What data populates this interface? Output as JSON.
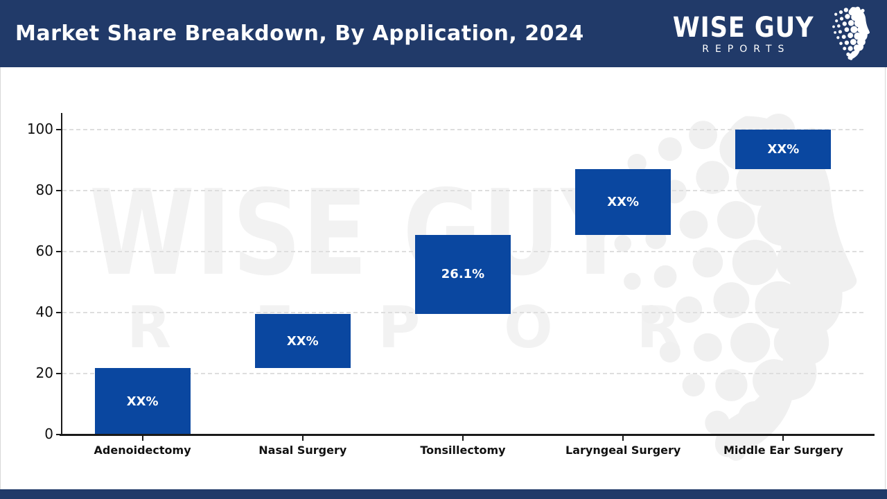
{
  "header": {
    "title": "Market Share Breakdown, By Application, 2024",
    "bg_color": "#213a69",
    "logo": {
      "line1": "WISE GUY",
      "line2": "REPORTS"
    }
  },
  "icons": {
    "logo_head": "dotted-face-profile",
    "watermark_head": "dotted-face-profile"
  },
  "watermark": {
    "line1": "WISE GUY",
    "line2": "R E P O R T S",
    "color": "#f2f2f2"
  },
  "chart_data": {
    "type": "bar",
    "subtype": "floating-waterfall",
    "title": "Market Share Breakdown, By Application, 2024",
    "categories": [
      "Adenoidectomy",
      "Nasal Surgery",
      "Tonsillectomy",
      "Laryngeal Surgery",
      "Middle Ear Surgery"
    ],
    "series": [
      {
        "name": "Market Share",
        "starts": [
          0,
          21.8,
          39.5,
          65.5,
          87.1
        ],
        "ends": [
          21.8,
          39.5,
          65.5,
          87.1,
          100
        ],
        "values": [
          21.8,
          17.7,
          26.1,
          21.6,
          12.9
        ]
      }
    ],
    "bar_labels": [
      "XX%",
      "XX%",
      "26.1%",
      "XX%",
      "XX%"
    ],
    "bar_color": "#0a47a0",
    "bar_label_color": "#ffffff",
    "xlabel": "",
    "ylabel": "",
    "ylim": [
      0,
      105
    ],
    "yticks": [
      0,
      20,
      40,
      60,
      80,
      100
    ],
    "grid": "horizontal-dashed",
    "gridline_color": "#dedede",
    "legend": "none"
  },
  "footer": {
    "bg_color": "#213a69"
  }
}
